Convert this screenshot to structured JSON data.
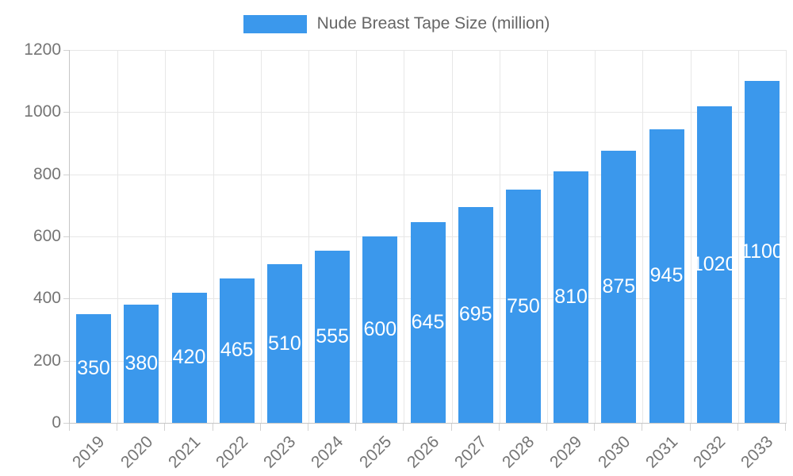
{
  "legend": {
    "label": "Nude Breast Tape Size (million)"
  },
  "colors": {
    "bar": "#3b98ec",
    "grid": "#e7e7e7",
    "axis_line": "#c6c6c6",
    "tick_mark": "#d2d2d2",
    "axis_text": "#757575",
    "legend_text": "#666666",
    "value_label_text": "#ffffff",
    "background": "#ffffff"
  },
  "chart_data": {
    "type": "bar",
    "title": "Nude Breast Tape Size (million)",
    "series_name": "Nude Breast Tape Size (million)",
    "categories": [
      "2019",
      "2020",
      "2021",
      "2022",
      "2023",
      "2024",
      "2025",
      "2026",
      "2027",
      "2028",
      "2029",
      "2030",
      "2031",
      "2032",
      "2033"
    ],
    "values": [
      350,
      380,
      420,
      465,
      510,
      555,
      600,
      645,
      695,
      750,
      810,
      875,
      945,
      1020,
      1100
    ],
    "xlabel": "",
    "ylabel": "",
    "ylim": [
      0,
      1200
    ],
    "yticks": [
      0,
      200,
      400,
      600,
      800,
      1000,
      1200
    ],
    "grid": true,
    "legend_position": "top-center",
    "x_tick_rotation_deg": -45,
    "value_label_position": "inside-center"
  }
}
